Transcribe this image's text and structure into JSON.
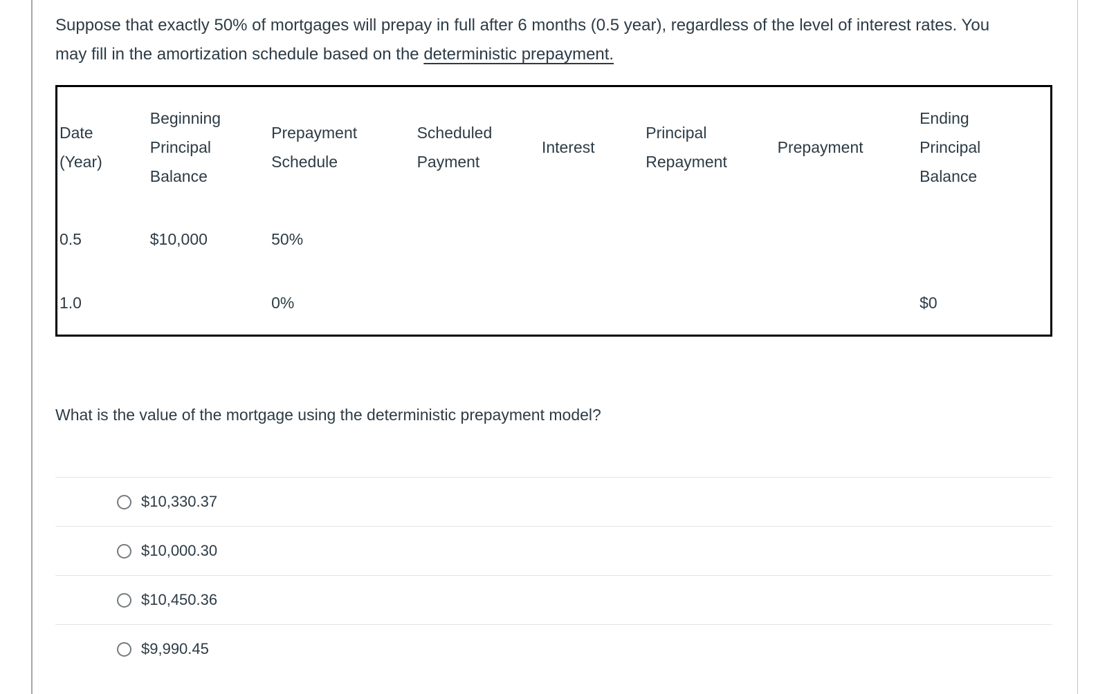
{
  "colors": {
    "text": "#2d3b45",
    "table_border": "#000000",
    "divider": "#e3e5e7",
    "radio_border": "#75797c",
    "panel_edge": "#a6a6a6"
  },
  "question": {
    "intro_text": "Suppose that exactly 50% of mortgages will prepay in full after 6 months (0.5 year), regardless of the level of interest rates. You may fill in the amortization schedule based on the ",
    "intro_underlined": "deterministic prepayment.",
    "prompt": "What is the value of the mortgage using the deterministic prepayment model?"
  },
  "table": {
    "headers": [
      "Date\n(Year)",
      "Beginning\nPrincipal\nBalance",
      "Prepayment\nSchedule",
      "Scheduled\nPayment",
      "Interest",
      "Principal\nRepayment",
      "Prepayment",
      "Ending\nPrincipal\nBalance"
    ],
    "rows": [
      [
        "0.5",
        "$10,000",
        "50%",
        "",
        "",
        "",
        "",
        ""
      ],
      [
        "1.0",
        "",
        "0%",
        "",
        "",
        "",
        "",
        "$0"
      ]
    ]
  },
  "options": [
    {
      "label": "$10,330.37"
    },
    {
      "label": "$10,000.30"
    },
    {
      "label": "$10,450.36"
    },
    {
      "label": "$9,990.45"
    }
  ]
}
